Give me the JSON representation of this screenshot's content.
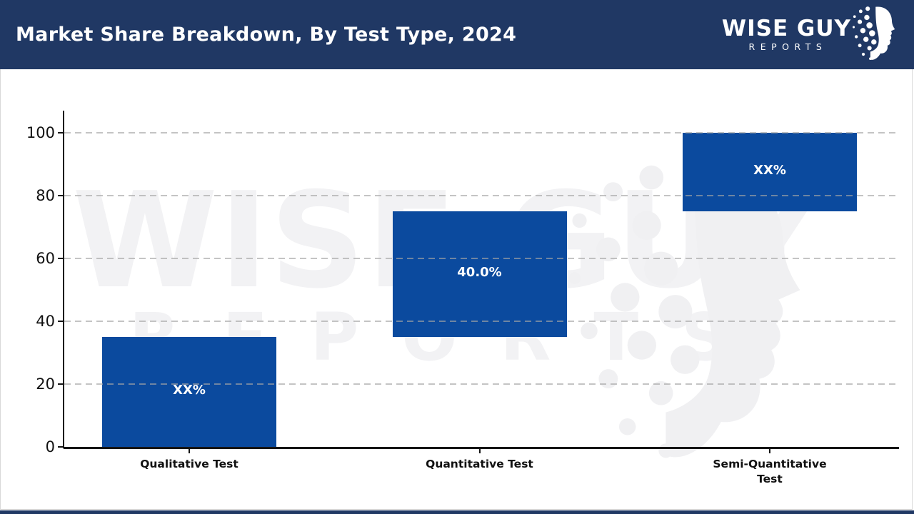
{
  "header": {
    "title": "Market Share Breakdown, By Test Type, 2024",
    "bg_color": "#203864",
    "logo": {
      "line1": "WISE GUY",
      "line2": "REPORTS"
    }
  },
  "watermark": {
    "line1": "WISE GUY",
    "line2": "R E P O R T S"
  },
  "chart_data": {
    "type": "bar",
    "subtype": "floating-waterfall",
    "title": "Market Share Breakdown, By Test Type, 2024",
    "categories": [
      "Qualitative Test",
      "Quantitative Test",
      "Semi-Quantitative Test"
    ],
    "segments": [
      {
        "category": "Qualitative Test",
        "start": 0,
        "end": 35,
        "label": "XX%"
      },
      {
        "category": "Quantitative Test",
        "start": 35,
        "end": 75,
        "label": "40.0%"
      },
      {
        "category": "Semi-Quantitative Test",
        "start": 75,
        "end": 100,
        "label": "XX%"
      }
    ],
    "yticks": [
      0,
      20,
      40,
      60,
      80,
      100
    ],
    "ylim": [
      0,
      100
    ],
    "grid": "horizontal-dashed-over-bars",
    "bar_color": "#0b4a9e",
    "label_color": "#ffffff",
    "xlabel": "",
    "ylabel": ""
  }
}
